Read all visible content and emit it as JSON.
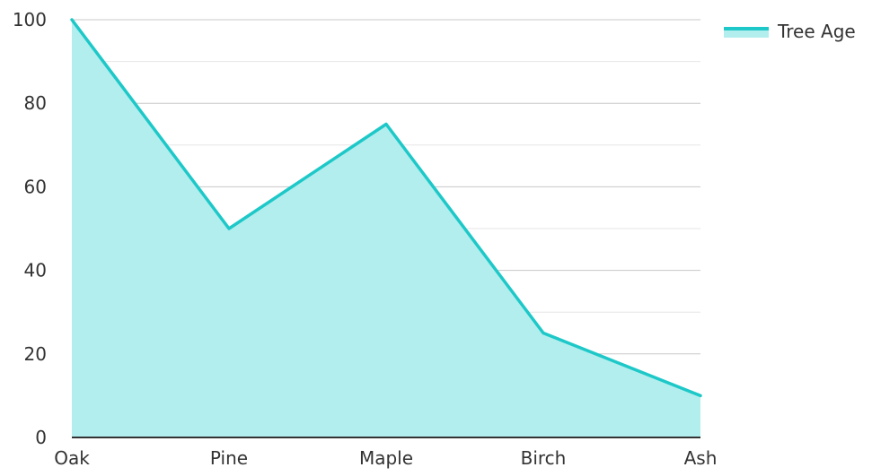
{
  "chart_data": {
    "type": "area",
    "categories": [
      "Oak",
      "Pine",
      "Maple",
      "Birch",
      "Ash"
    ],
    "series": [
      {
        "name": "Tree Age",
        "values": [
          100,
          50,
          75,
          25,
          10
        ],
        "color": "#1ec8c8",
        "fill_color": "#b2eeee"
      }
    ],
    "ylim": [
      0,
      100
    ],
    "y_ticks": [
      0,
      20,
      40,
      60,
      80,
      100
    ],
    "minor_gridlines": true,
    "grid": true,
    "legend_position": "top-right",
    "title": "",
    "xlabel": "",
    "ylabel": ""
  },
  "colors": {
    "major_grid": "#c8c8c8",
    "minor_grid": "#e6e6e6",
    "axis": "#333333",
    "text": "#333333"
  }
}
